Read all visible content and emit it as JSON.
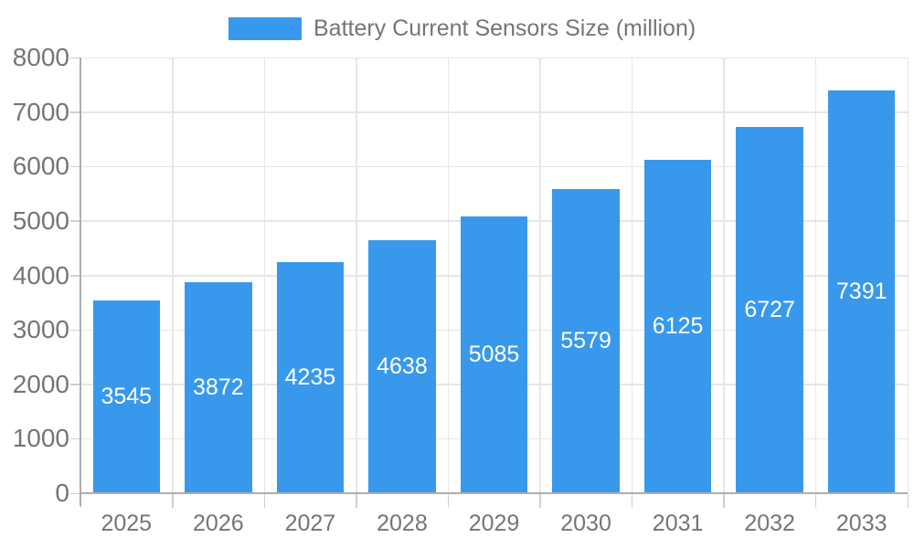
{
  "chart_data": {
    "type": "bar",
    "title": "Battery Current Sensors Size (million)",
    "categories": [
      "2025",
      "2026",
      "2027",
      "2028",
      "2029",
      "2030",
      "2031",
      "2032",
      "2033"
    ],
    "values": [
      3545,
      3872,
      4235,
      4638,
      5085,
      5579,
      6125,
      6727,
      7391
    ],
    "bar_labels": [
      "3545",
      "3872",
      "4235",
      "4638",
      "5085",
      "5579",
      "6125",
      "6727",
      "7391"
    ],
    "xlabel": "",
    "ylabel": "",
    "ylim": [
      0,
      8000
    ],
    "ytick_step": 1000,
    "y_ticks": [
      0,
      1000,
      2000,
      3000,
      4000,
      5000,
      6000,
      7000,
      8000
    ],
    "grid": "both",
    "legend_position": "top",
    "colors": {
      "bar": "#3899EC",
      "bar_label_text": "#FFFFFF",
      "axis_label_text": "#757575",
      "legend_text": "#757575",
      "gridline": "#E6E6E6",
      "axis_line": "#ADADAD",
      "tick_mark": "#CFCFCF",
      "background": "#FFFFFF"
    }
  }
}
